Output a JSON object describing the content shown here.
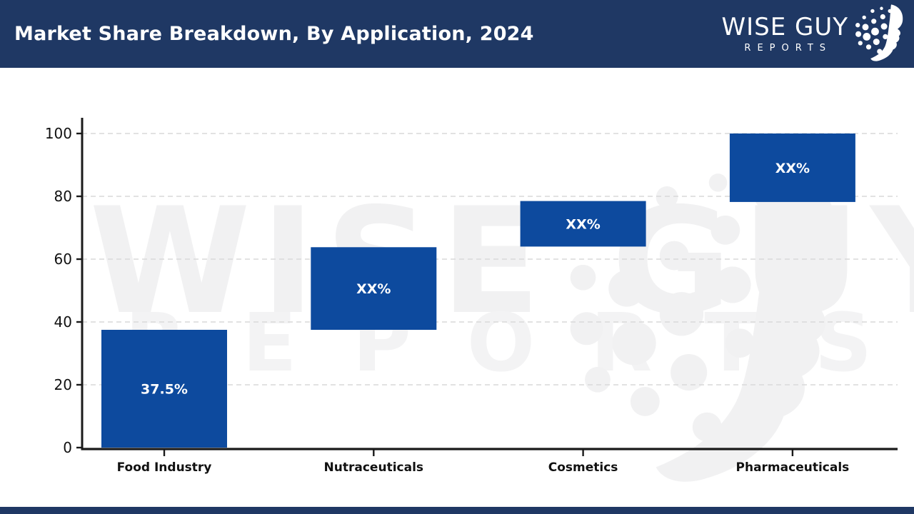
{
  "header": {
    "title": "Market Share Breakdown, By Application, 2024",
    "logo": {
      "line1": "WISE GUY",
      "line2": "REPORTS"
    },
    "bg_color": "#1F3864"
  },
  "watermark": {
    "line1": "WISE GUY",
    "line2": "REPORTS"
  },
  "chart_data": {
    "type": "bar",
    "subtype": "waterfall",
    "title": "Market Share Breakdown, By Application, 2024",
    "categories": [
      "Food Industry",
      "Nutraceuticals",
      "Cosmetics",
      "Pharmaceuticals"
    ],
    "segments": [
      {
        "category": "Food Industry",
        "start": 0,
        "end": 37.5,
        "label": "37.5%"
      },
      {
        "category": "Nutraceuticals",
        "start": 37.5,
        "end": 63.8,
        "label": "XX%"
      },
      {
        "category": "Cosmetics",
        "start": 64.0,
        "end": 78.5,
        "label": "XX%"
      },
      {
        "category": "Pharmaceuticals",
        "start": 78.2,
        "end": 100,
        "label": "XX%"
      }
    ],
    "y_ticks": [
      0,
      20,
      40,
      60,
      80,
      100
    ],
    "ylim": [
      0,
      105
    ],
    "grid": "horizontal-dashed",
    "legend": "none",
    "colors": {
      "bar": "#0D4A9E",
      "bar_label": "#ffffff",
      "axis": "#1a1a1a",
      "tick_label": "#111111",
      "gridline": "#d9d9d9"
    }
  }
}
